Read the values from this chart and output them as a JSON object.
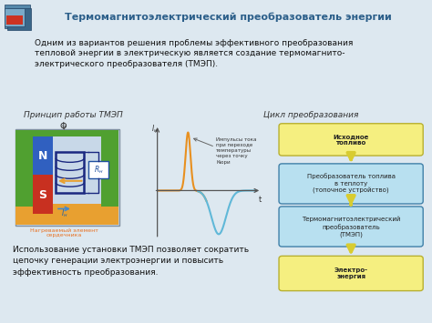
{
  "title": "Термомагнитоэлектрический преобразователь энергии",
  "title_color": "#2c5f8a",
  "header_bg": "#a8cce0",
  "body_bg": "#dde8f0",
  "intro_text": "Одним из вариантов решения проблемы эффективного преобразования\nтепловой энергии в электрическую является создание термомагнито-\nэлектрического преобразователя (ТМЭП).",
  "left_title": "Принцип работы ТМЭП",
  "right_title": "Цикл преобразования",
  "flow_boxes": [
    {
      "text": "Исходное\nтопливо",
      "bg": "#f5ef80",
      "border": "#b8b030",
      "bold": true
    },
    {
      "text": "Преобразователь топлива\nв теплоту\n(топочное устройство)",
      "bg": "#b8e0f0",
      "border": "#4080a8",
      "bold": false
    },
    {
      "text": "Термомагнитоэлектрический\nпреобразователь\n(ТМЭП)",
      "bg": "#b8e0f0",
      "border": "#4080a8",
      "bold": false
    },
    {
      "text": "Электро-\nэнергия",
      "bg": "#f5ef80",
      "border": "#b8b030",
      "bold": true
    }
  ],
  "arrow_color": "#d8cc30",
  "bottom_text": "Использование установки ТМЭП позволяет сократить\nцепочку генерации электроэнергии и повысить\nэффективность преобразования.",
  "curve_annotation": "Импульсы тока\nпри переходе\nтемпературы\nчерез точку\nКюри"
}
